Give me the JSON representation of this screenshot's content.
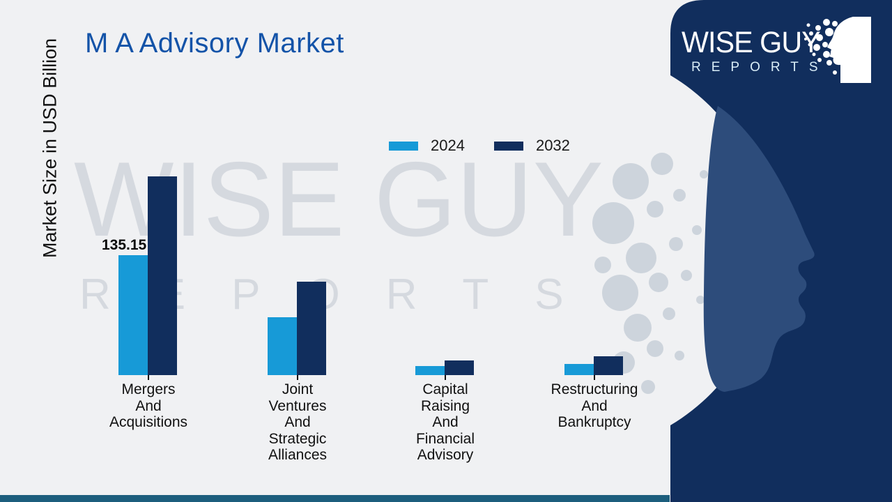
{
  "header": {
    "title": "M A Advisory Market"
  },
  "branding": {
    "logo_title": "WISE GUY",
    "logo_subtitle": "REPORTS",
    "watermark_title": "WISE GUY",
    "watermark_subtitle": "REPORTS"
  },
  "colors": {
    "background": "#f0f1f3",
    "title": "#1353a8",
    "series_2024": "#179ad7",
    "series_2032": "#112e5d",
    "panel_navy": "#112e5d",
    "face_silhouette": "#2d4c7b",
    "bottom_bar_teal": "#1c5e7d",
    "watermark_grey": "#d5d9df",
    "watermark_dot_grey": "#cdd4dc",
    "logo_subtitle": "#d9edf7"
  },
  "chart_data": {
    "type": "bar",
    "title": "M A Advisory Market",
    "xlabel": "",
    "ylabel": "Market Size in USD Billion",
    "categories": [
      "Mergers\nAnd\nAcquisitions",
      "Joint\nVentures\nAnd\nStrategic\nAlliances",
      "Capital\nRaising\nAnd\nFinancial\nAdvisory",
      "Restructuring\nAnd\nBankruptcy"
    ],
    "series": [
      {
        "name": "2024",
        "values": [
          135.15,
          65,
          10.5,
          12.5
        ]
      },
      {
        "name": "2032",
        "values": [
          224,
          105,
          16.5,
          21
        ]
      }
    ],
    "annotated_value_label": "135.15",
    "ylim": [
      0,
      230
    ],
    "grid": false,
    "legend_position": "top-center",
    "axis_lines": false
  }
}
